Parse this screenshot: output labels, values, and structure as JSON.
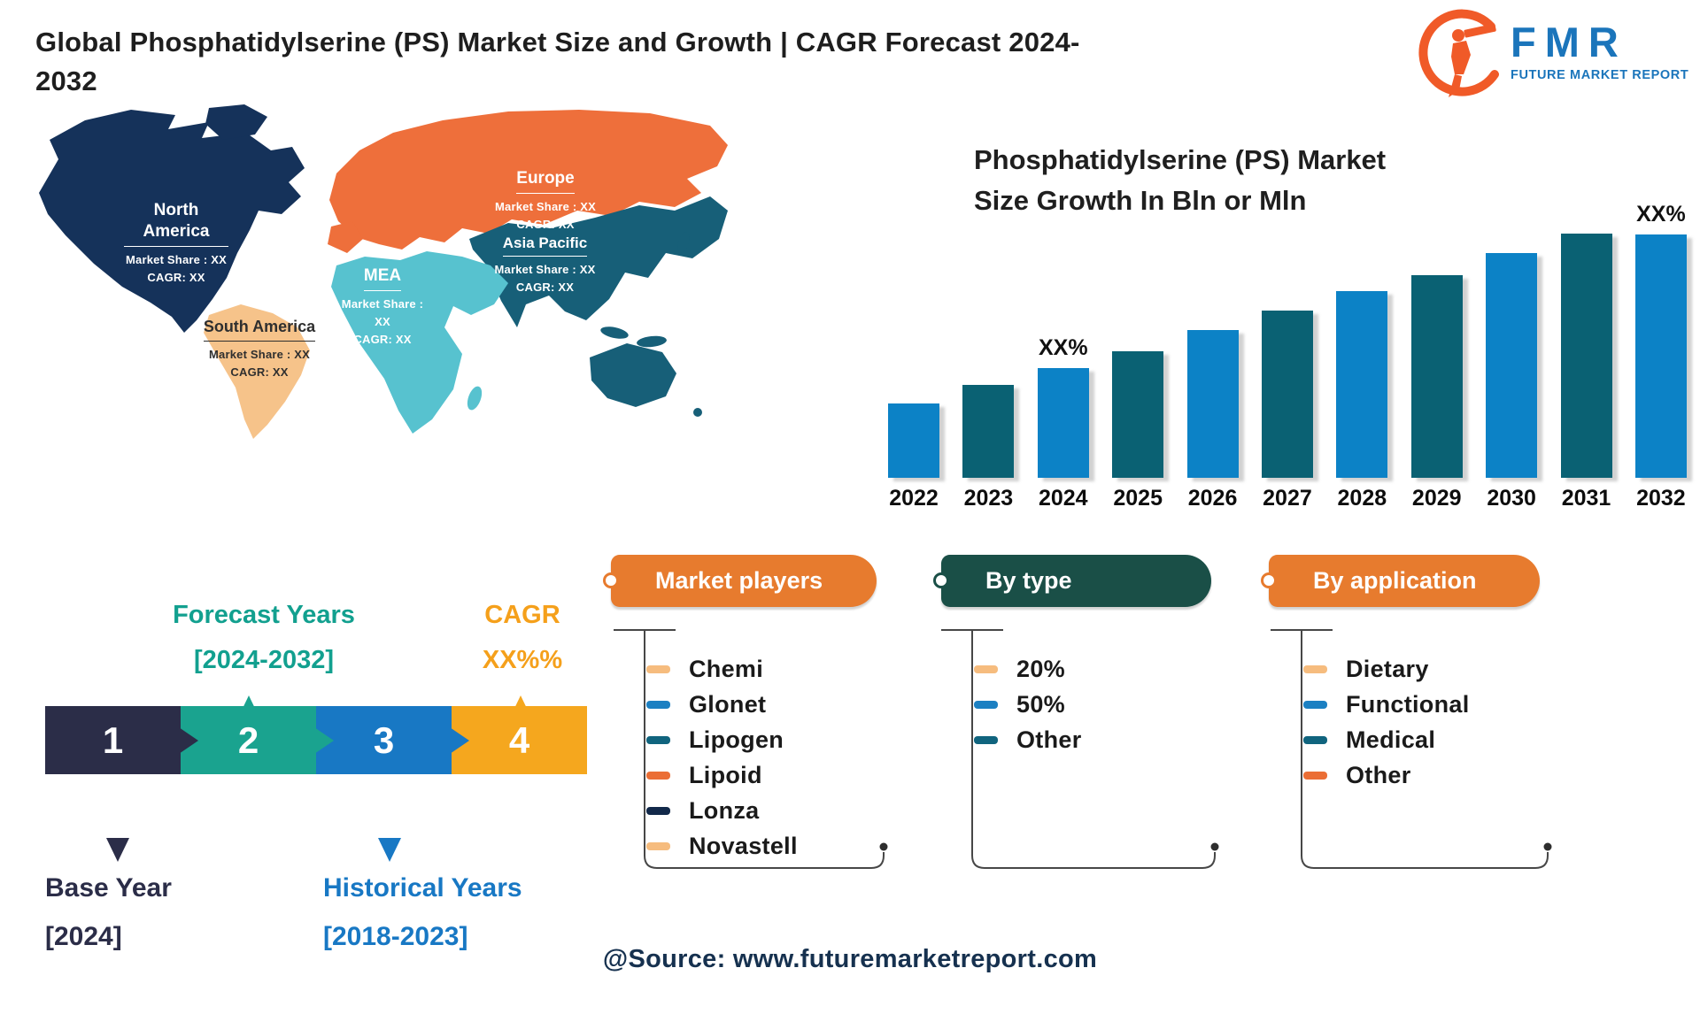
{
  "header": {
    "title": "Global Phosphatidylserine (PS) Market Size and Growth | CAGR Forecast 2024-2032"
  },
  "logo": {
    "abbr": "FMR",
    "name": "FUTURE MARKET REPORT",
    "orange": "#f05a28",
    "blue": "#1b75bb"
  },
  "map": {
    "regions": [
      {
        "id": "north-america",
        "name": "North America",
        "market_share": "Market Share : XX",
        "cagr": "CAGR: XX",
        "color": "#15325a",
        "text_color": "#ffffff"
      },
      {
        "id": "south-america",
        "name": "South America",
        "market_share": "Market Share : XX",
        "cagr": "CAGR: XX",
        "color": "#f6c38a",
        "text_color": "#2f2f2f"
      },
      {
        "id": "europe",
        "name": "Europe",
        "market_share": "Market Share : XX",
        "cagr": "CAGR: XX",
        "color": "#ee6f3b",
        "text_color": "#ffffff"
      },
      {
        "id": "mea",
        "name": "MEA",
        "market_share": "Market Share : XX",
        "cagr": "CAGR: XX",
        "color": "#57c2cf",
        "text_color": "#ffffff"
      },
      {
        "id": "asia-pacific",
        "name": "Asia Pacific",
        "market_share": "Market Share : XX",
        "cagr": "CAGR: XX",
        "color": "#175f78",
        "text_color": "#ffffff"
      }
    ]
  },
  "chart_data": {
    "type": "bar",
    "title": "Phosphatidylserine (PS) Market Size Growth In Bln or Mln",
    "categories": [
      "2022",
      "2023",
      "2024",
      "2025",
      "2026",
      "2027",
      "2028",
      "2029",
      "2030",
      "2031",
      "2032"
    ],
    "values": [
      27,
      34,
      40,
      46,
      54,
      61,
      68,
      74,
      82,
      89,
      99
    ],
    "values_note": "Relative bar heights on a 0-100 scale; the source image shows no numeric axis and labels values only as XX",
    "annotations": {
      "2024": "XX%",
      "2032": "XX%"
    },
    "bar_colors": [
      "#0c82c6",
      "#0a6173"
    ],
    "xlabel": "",
    "ylabel": "",
    "grid": false,
    "legend": "none"
  },
  "segments": {
    "market_players": {
      "label": "Market players",
      "pill_color": "#e77b2e",
      "items": [
        {
          "name": "Chemi",
          "dash": "#f6bc7e"
        },
        {
          "name": "Glonet",
          "dash": "#1c80c2"
        },
        {
          "name": "Lipogen",
          "dash": "#10647e"
        },
        {
          "name": "Lipoid",
          "dash": "#eb6e35"
        },
        {
          "name": "Lonza",
          "dash": "#12294a"
        },
        {
          "name": "Novastell",
          "dash": "#f6bc7e"
        }
      ]
    },
    "by_type": {
      "label": "By type",
      "pill_color": "#1a4f47",
      "items": [
        {
          "name": "20%",
          "dash": "#f6bc7e"
        },
        {
          "name": "50%",
          "dash": "#1c80c2"
        },
        {
          "name": "Other",
          "dash": "#10647e"
        }
      ]
    },
    "by_application": {
      "label": "By application",
      "pill_color": "#e77b2e",
      "items": [
        {
          "name": "Dietary",
          "dash": "#f6bc7e"
        },
        {
          "name": "Functional",
          "dash": "#1c80c2"
        },
        {
          "name": "Medical",
          "dash": "#10647e"
        },
        {
          "name": "Other",
          "dash": "#eb6e35"
        }
      ]
    }
  },
  "timeline": {
    "steps": [
      {
        "num": "1",
        "color": "#2b2d48"
      },
      {
        "num": "2",
        "color": "#1aa38f"
      },
      {
        "num": "3",
        "color": "#1878c4"
      },
      {
        "num": "4",
        "color": "#f5a71e"
      }
    ],
    "forecast": {
      "line1": "Forecast Years",
      "line2": "[2024-2032]",
      "color": "#12a08f"
    },
    "cagr": {
      "line1": "CAGR",
      "line2": "XX%%",
      "color": "#f5a01b"
    },
    "base_year": {
      "line1": "Base Year",
      "line2": "[2024]",
      "color": "#2b2d48"
    },
    "historical": {
      "line1": "Historical Years",
      "line2": "[2018-2023]",
      "color": "#1878c4"
    }
  },
  "source": "@Source: www.futuremarketreport.com"
}
